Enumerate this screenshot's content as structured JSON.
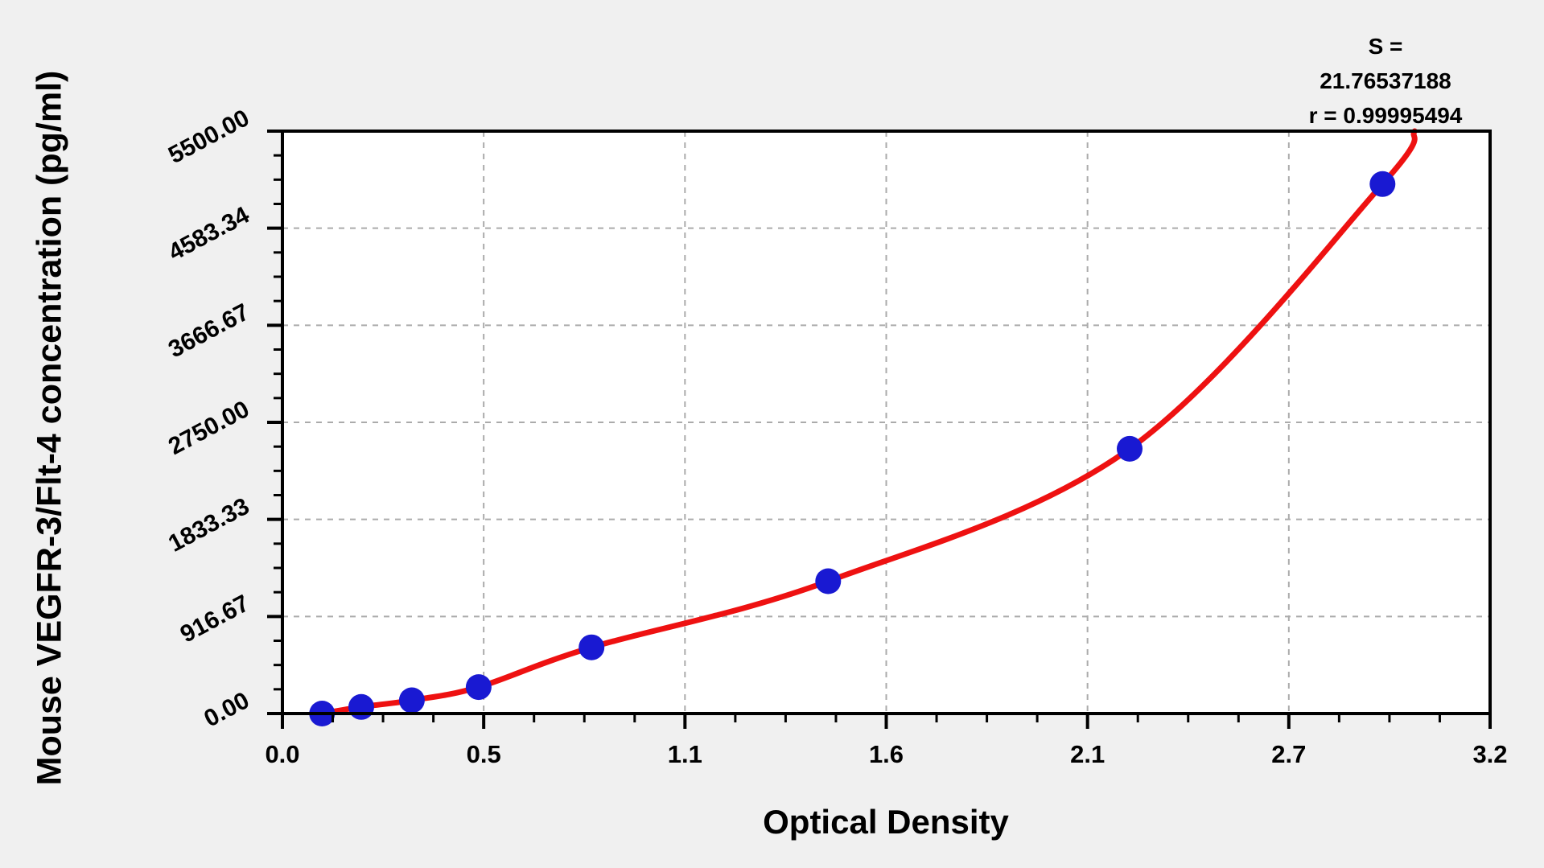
{
  "chart_data": {
    "type": "scatter",
    "title": "",
    "xlabel": "Optical Density",
    "ylabel": "Mouse VEGFR-3/Flt-4 concentration (pg/ml)",
    "xlim": [
      0,
      3.2
    ],
    "ylim": [
      0,
      5500
    ],
    "x_tick_labels": [
      "0.0",
      "0.5",
      "1.1",
      "1.6",
      "2.1",
      "2.7",
      "3.2"
    ],
    "y_tick_labels": [
      "0.00",
      "916.67",
      "1833.33",
      "2750.00",
      "3666.67",
      "4583.34",
      "5500.00"
    ],
    "minor_ticks_between_major": 3,
    "grid": "dashed-at-major-ticks",
    "legend": "none",
    "series": [
      {
        "name": "standard-points",
        "type": "scatter",
        "x": [
          0.105,
          0.209,
          0.343,
          0.52,
          0.819,
          1.446,
          2.245,
          2.915
        ],
        "y": [
          0,
          62.5,
          125,
          250,
          625,
          1250,
          2500,
          5000
        ]
      },
      {
        "name": "fit-curve",
        "type": "line",
        "x": [
          0.105,
          0.209,
          0.343,
          0.52,
          0.819,
          1.446,
          2.245,
          2.915,
          3.0
        ],
        "y": [
          0,
          62.5,
          125,
          250,
          625,
          1250,
          2500,
          5000,
          5500
        ]
      }
    ],
    "stats": {
      "s_line": "S = 21.76537188",
      "r_line": "r = 0.99995494"
    },
    "colors": {
      "point": "#1919d2",
      "curve": "#ee1111",
      "grid": "#ababab",
      "axis": "#000000",
      "text": "#000000",
      "background": "#f0f0f0",
      "plot_background": "#ffffff"
    }
  }
}
